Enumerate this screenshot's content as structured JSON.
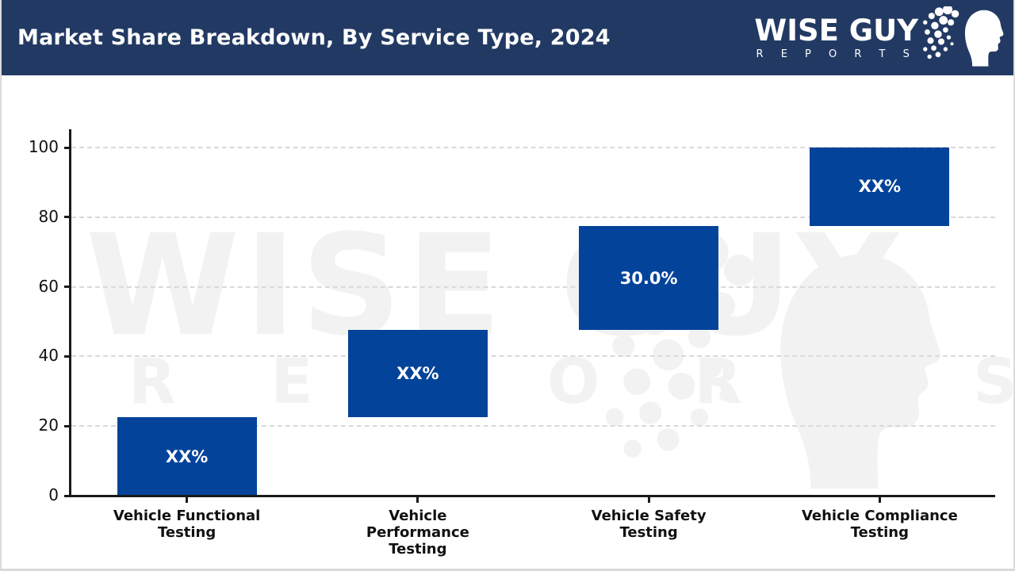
{
  "header": {
    "title": "Market Share Breakdown, By Service Type, 2024",
    "logo": {
      "name": "WISE GUY",
      "sub": "R E P O R T S"
    }
  },
  "watermark": {
    "text": "WISE GUY",
    "sub": "R E P O R T S"
  },
  "colors": {
    "header_bg": "#223a63",
    "bar": "#04439a",
    "bar_label": "#ffffff",
    "grid": "#d9d9d9",
    "axis": "#1a1a1a",
    "watermark": "#f2f2f2"
  },
  "chart_data": {
    "type": "bar",
    "subtype": "waterfall",
    "title": "Market Share Breakdown, By Service Type, 2024",
    "categories": [
      "Vehicle Functional\nTesting",
      "Vehicle\nPerformance\nTesting",
      "Vehicle Safety\nTesting",
      "Vehicle Compliance\nTesting"
    ],
    "segments": [
      {
        "category": "Vehicle Functional Testing",
        "start": 0,
        "end": 22.5,
        "label": "XX%"
      },
      {
        "category": "Vehicle Performance Testing",
        "start": 22.5,
        "end": 47.5,
        "label": "XX%"
      },
      {
        "category": "Vehicle Safety Testing",
        "start": 47.5,
        "end": 77.5,
        "label": "30.0%"
      },
      {
        "category": "Vehicle Compliance Testing",
        "start": 77.5,
        "end": 100,
        "label": "XX%"
      }
    ],
    "ylim": [
      0,
      100
    ],
    "yticks": [
      0,
      20,
      40,
      60,
      80,
      100
    ],
    "xlabel": "",
    "ylabel": "",
    "grid": "dashed-horizontal",
    "legend": "none"
  }
}
